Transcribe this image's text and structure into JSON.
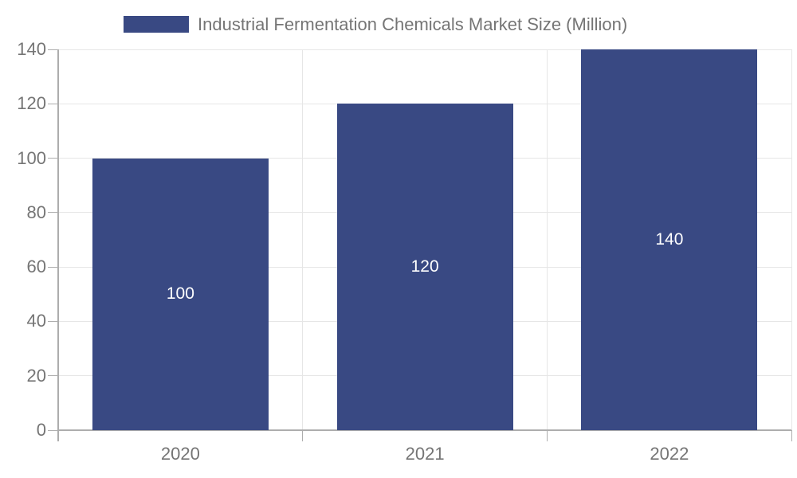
{
  "legend": {
    "label": "Industrial Fermentation Chemicals Market Size (Million)"
  },
  "chart_data": {
    "type": "bar",
    "title": "Industrial Fermentation Chemicals Market Size (Million)",
    "categories": [
      "2020",
      "2021",
      "2022"
    ],
    "series": [
      {
        "name": "Industrial Fermentation Chemicals Market Size (Million)",
        "values": [
          100,
          120,
          140
        ]
      }
    ],
    "data_labels": [
      "100",
      "120",
      "140"
    ],
    "xlabel": "",
    "ylabel": "",
    "ylim": [
      0,
      140
    ],
    "yticks": [
      "0",
      "20",
      "40",
      "60",
      "80",
      "100",
      "120",
      "140"
    ],
    "ytick_values": [
      0,
      20,
      40,
      60,
      80,
      100,
      120,
      140
    ],
    "grid": true,
    "legend_position": "top",
    "colors": {
      "bar": "#394983",
      "axis_line": "#adadad",
      "gridline": "#e6e6e6",
      "tick_text": "#757575",
      "legend_text": "#757575",
      "data_label_text": "#ffffff",
      "background": "#ffffff"
    }
  }
}
